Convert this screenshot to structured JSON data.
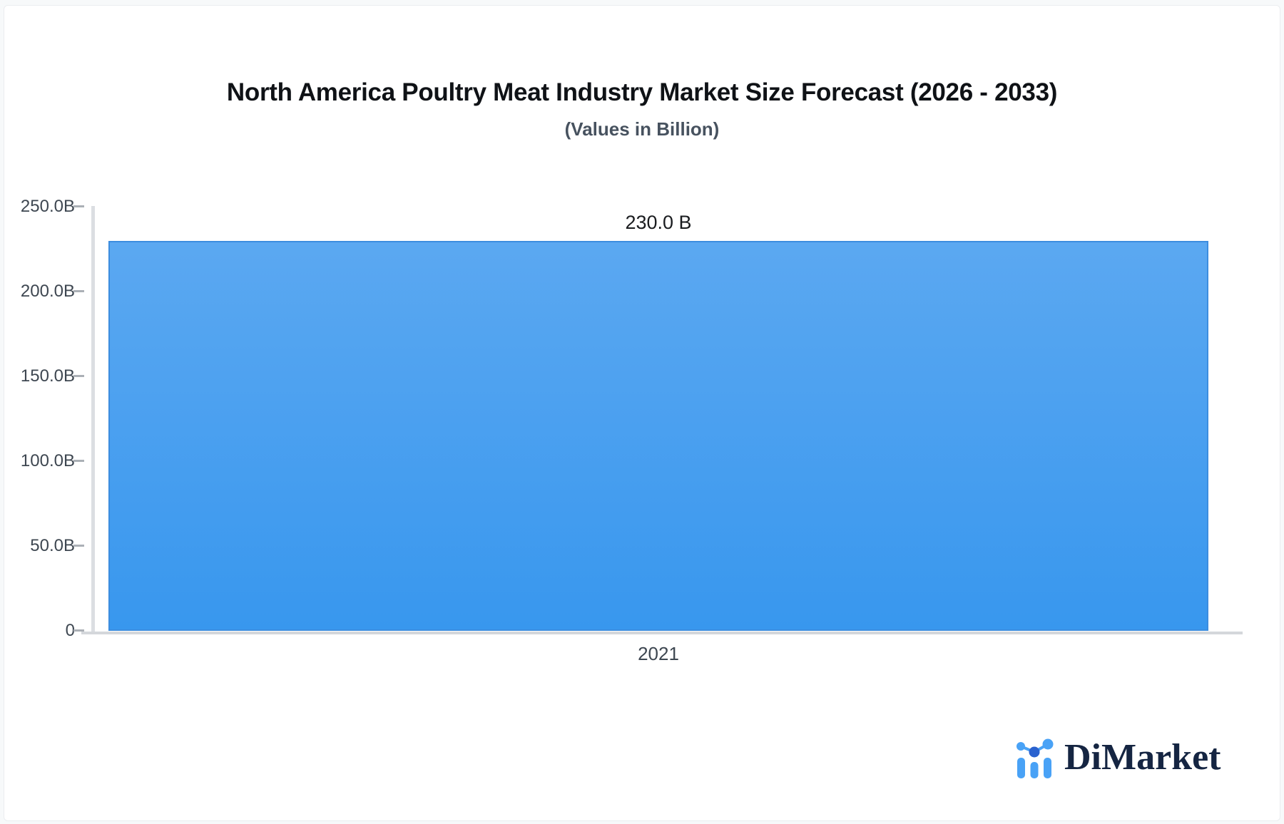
{
  "title": "North America Poultry Meat Industry Market Size Forecast (2026 - 2033)",
  "subtitle": "(Values in Billion)",
  "chart_data": {
    "type": "bar",
    "title": "North America Poultry Meat Industry Market Size Forecast (2026 - 2033)",
    "subtitle": "(Values in Billion)",
    "categories": [
      "2021"
    ],
    "values": [
      230.0
    ],
    "value_labels": [
      "230.0 B"
    ],
    "xlabel": "",
    "ylabel": "",
    "ylim": [
      0,
      250
    ],
    "y_ticks": [
      "250.0B",
      "200.0B",
      "150.0B",
      "100.0B",
      "50.0B",
      "0"
    ],
    "grid": false,
    "legend": false,
    "bar_color_top": "#5ba8f1",
    "bar_color_bottom": "#3897ee",
    "bar_border_color": "#3c8ddf",
    "axis_color": "#d4d7db",
    "tick_label_color": "#3e4751"
  },
  "logo": {
    "text": "DiMarket",
    "icon": "mini-bar-line-chart-icon",
    "icon_blue": "#49a2f6",
    "icon_dark_blue": "#2a62cf",
    "text_color": "#152542"
  }
}
